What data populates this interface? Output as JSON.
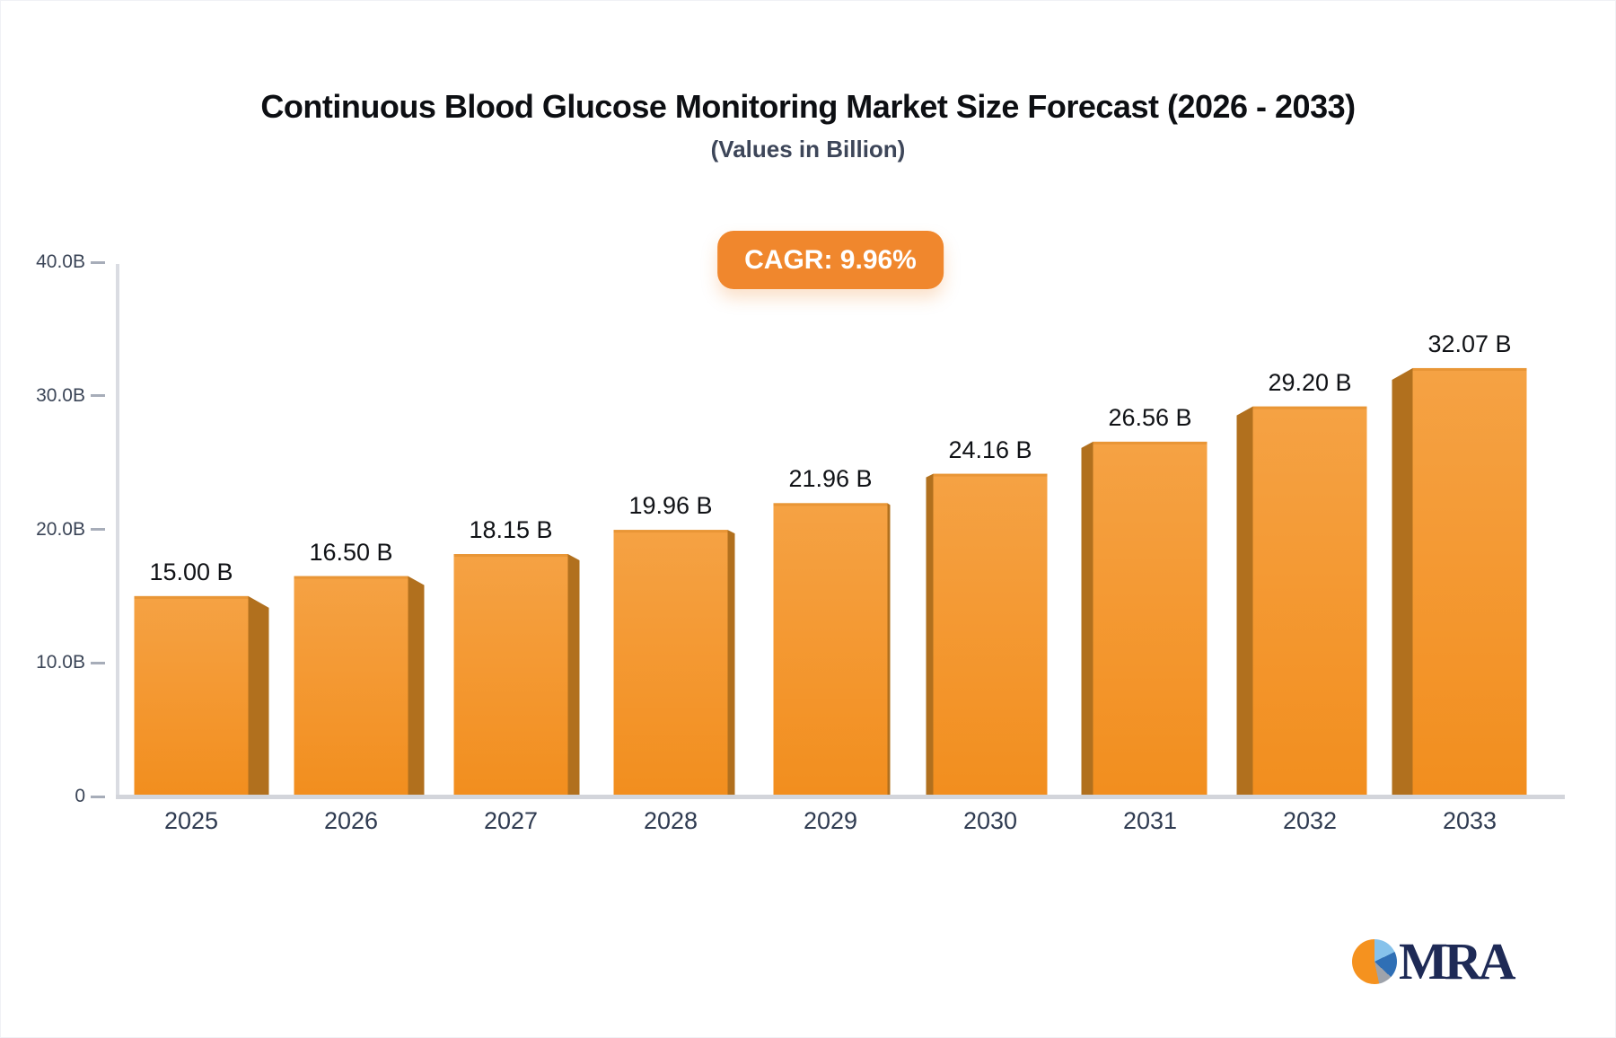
{
  "header": {
    "title": "Continuous Blood Glucose Monitoring Market Size Forecast (2026 - 2033)",
    "subtitle": "(Values in Billion)"
  },
  "badge": {
    "label": "CAGR: 9.96%",
    "bg_color": "#F0872D",
    "text_color": "#FFFFFF"
  },
  "chart_data": {
    "type": "bar",
    "title": "Continuous Blood Glucose Monitoring Market Size Forecast (2026 - 2033)",
    "subtitle": "(Values in Billion)",
    "categories": [
      "2025",
      "2026",
      "2027",
      "2028",
      "2029",
      "2030",
      "2031",
      "2032",
      "2033"
    ],
    "values": [
      15.0,
      16.5,
      18.15,
      19.96,
      21.96,
      24.16,
      26.56,
      29.2,
      32.07
    ],
    "value_labels": [
      "15.00 B",
      "16.50 B",
      "18.15 B",
      "19.96 B",
      "21.96 B",
      "24.16 B",
      "26.56 B",
      "29.20 B",
      "32.07 B"
    ],
    "unit": "B",
    "xlabel": "",
    "ylabel": "",
    "ylim": [
      0,
      40
    ],
    "yticks": [
      0,
      10,
      20,
      30,
      40
    ],
    "ytick_labels": [
      "0",
      "10.0B",
      "20.0B",
      "30.0B",
      "40.0B"
    ],
    "grid": false,
    "legend": false,
    "annotations": [
      "CAGR: 9.96%"
    ],
    "bar_style": {
      "face_top": "#F5A244",
      "face_bottom": "#F28E1E",
      "side": "#B1701E",
      "top_edge": "#DE8D2B"
    },
    "axis_colors": {
      "axis_line": "#D3D5DB",
      "tick_label": "#3B4557",
      "category_label": "#2F3B51",
      "value_label": "#101216"
    }
  },
  "logo": {
    "text": "MRA",
    "text_color": "#1E2A56",
    "pie_segments": [
      {
        "color": "#86C2EB",
        "to_deg": 64
      },
      {
        "color": "#2F6FB5",
        "to_deg": 133
      },
      {
        "color": "#9EA3AB",
        "to_deg": 168
      },
      {
        "color": "#F5921F",
        "to_deg": 360
      }
    ]
  }
}
